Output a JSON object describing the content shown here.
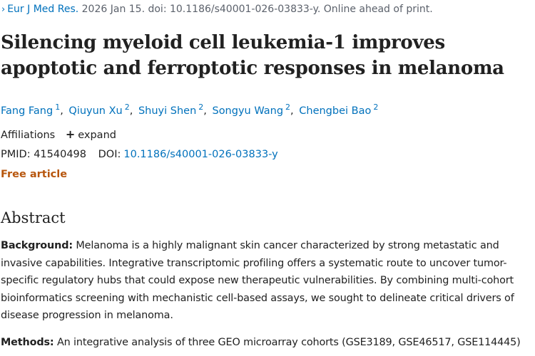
{
  "citation": {
    "chevron": "›",
    "journal": "Eur J Med Res.",
    "details": " 2026 Jan 15. doi: 10.1186/s40001-026-03833-y. Online ahead of print."
  },
  "title": "Silencing myeloid cell leukemia-1 improves apoptotic and ferroptotic responses in melanoma",
  "authors": [
    {
      "name": "Fang Fang",
      "sup": "1",
      "sep": ","
    },
    {
      "name": "Qiuyun Xu",
      "sup": "2",
      "sep": ","
    },
    {
      "name": "Shuyi Shen",
      "sup": "2",
      "sep": ","
    },
    {
      "name": "Songyu Wang",
      "sup": "2",
      "sep": ","
    },
    {
      "name": "Chengbei Bao",
      "sup": "2",
      "sep": ""
    }
  ],
  "affiliations": {
    "label": "Affiliations",
    "plus": "+",
    "expand": "expand"
  },
  "ids": {
    "pmid_label": "PMID:",
    "pmid": "41540498",
    "doi_label": "DOI:",
    "doi": "10.1186/s40001-026-03833-y"
  },
  "free_article": "Free article",
  "abstract": {
    "heading": "Abstract",
    "background_label": "Background:",
    "background_text": " Melanoma is a highly malignant skin cancer characterized by strong metastatic and invasive capabilities. Integrative transcriptomic profiling offers a systematic route to uncover tumor-specific regulatory hubs that could expose new therapeutic vulnerabilities. By combining multi-cohort bioinformatics screening with mechanistic cell-based assays, we sought to delineate critical drivers of disease progression in melanoma.",
    "methods_label": "Methods:",
    "methods_text": " An integrative analysis of three GEO microarray cohorts (GSE3189, GSE46517, GSE114445)"
  }
}
